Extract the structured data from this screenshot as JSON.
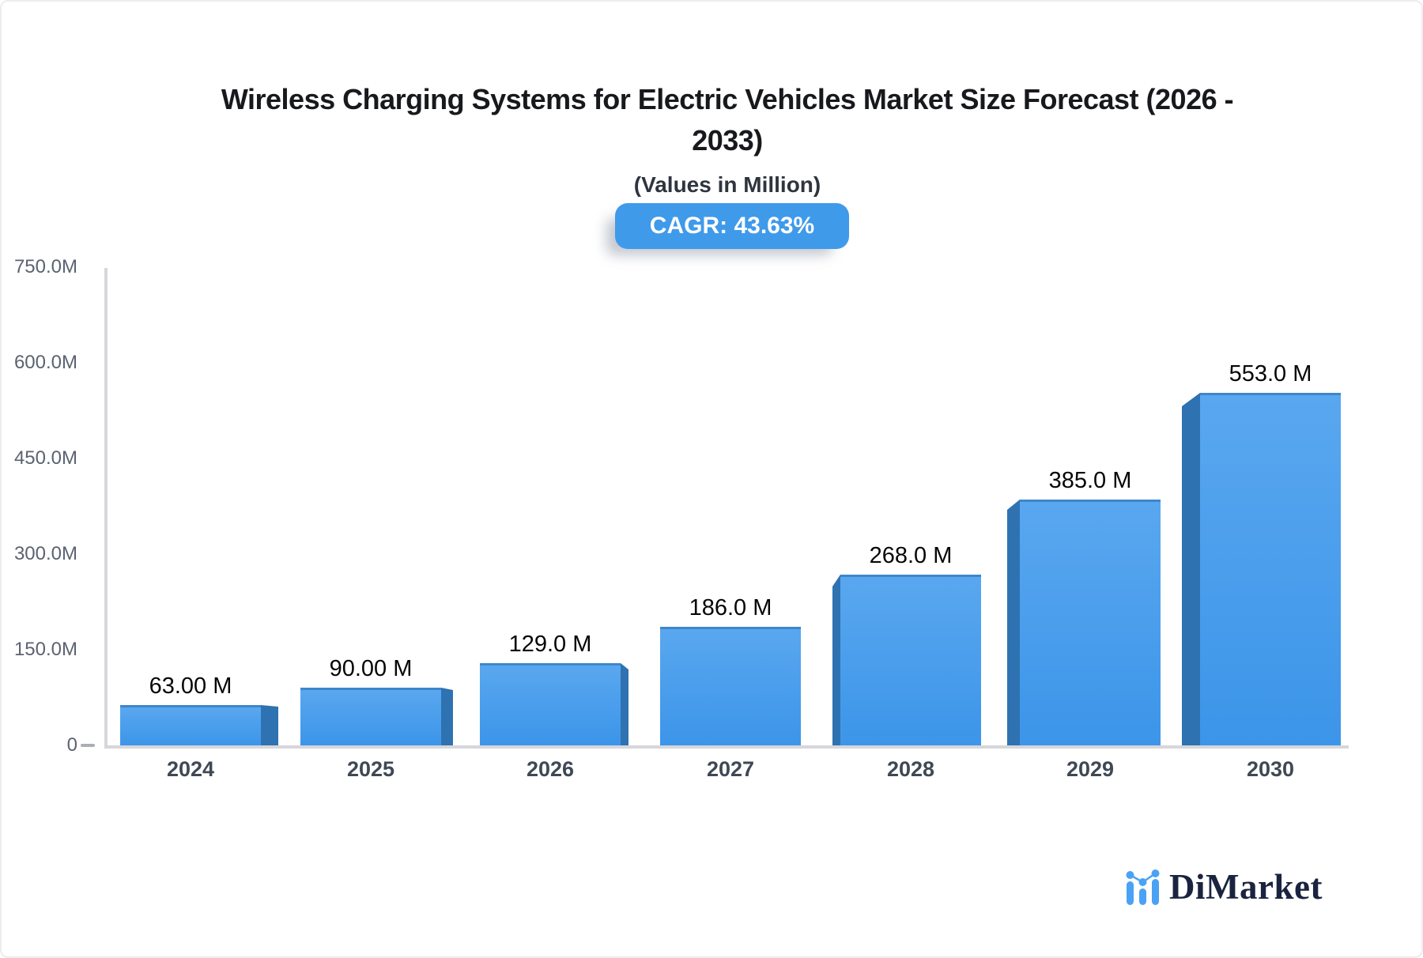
{
  "header": {
    "title_line1": "Wireless Charging Systems for Electric Vehicles Market Size Forecast (2026 -",
    "title_line2": "2033)",
    "subtitle": "(Values in Million)",
    "cagr_badge": "CAGR: 43.63%",
    "badge_color": "#3f9aea"
  },
  "chart_data": {
    "type": "bar",
    "title": "Wireless Charging Systems for Electric Vehicles Market Size Forecast (2026 - 2033)",
    "subtitle": "(Values in Million)",
    "cagr": "43.63%",
    "unit": "Million",
    "categories": [
      "2024",
      "2025",
      "2026",
      "2027",
      "2028",
      "2029",
      "2030"
    ],
    "values": [
      63,
      90,
      129,
      186,
      268,
      385,
      553
    ],
    "value_labels": [
      "63.00 M",
      "90.00 M",
      "129.0 M",
      "186.0 M",
      "268.0 M",
      "385.0 M",
      "553.0 M"
    ],
    "ylim": [
      0,
      750
    ],
    "ytick_interval": 150,
    "yticks": [
      {
        "value": 750,
        "label": "750.0M"
      },
      {
        "value": 600,
        "label": "600.0M"
      },
      {
        "value": 450,
        "label": "450.0M"
      },
      {
        "value": 300,
        "label": "300.0M"
      },
      {
        "value": 150,
        "label": "150.0M"
      },
      {
        "value": 0,
        "label": "0"
      }
    ],
    "grid": false,
    "legend": false,
    "bar_style": "3d",
    "colors": {
      "front_top": "#59a7ef",
      "front_bottom": "#3c95e9",
      "side": "#2e72b1",
      "top_edge": "#3e86cb",
      "axis": "#d6d6db"
    }
  },
  "footer": {
    "brand": "DiMarket",
    "brand_color": "#1a2340",
    "icon_color": "#4aa2f5"
  }
}
